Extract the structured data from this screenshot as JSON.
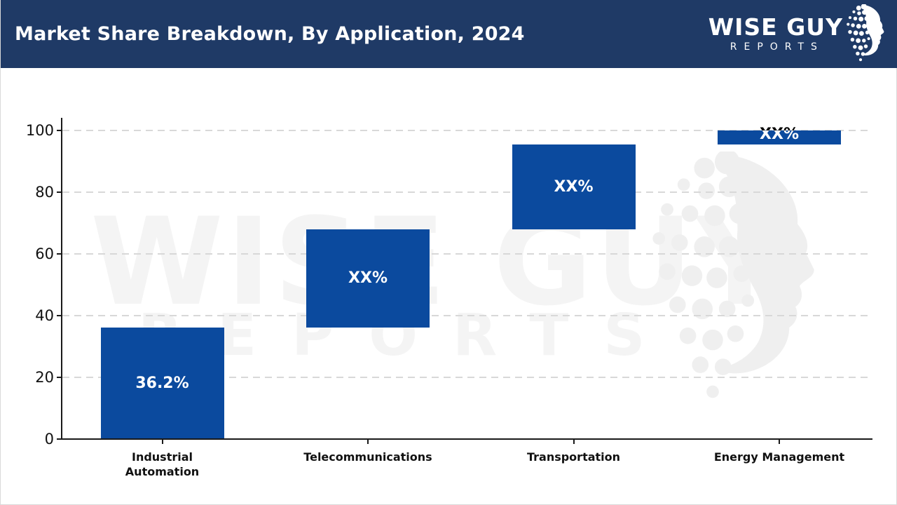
{
  "header": {
    "title": "Market Share Breakdown, By Application, 2024",
    "bg_color": "#1F3A66",
    "logo": {
      "line1": "WISE GUY",
      "line2": "REPORTS"
    }
  },
  "watermark": {
    "line1": "WISE GUY",
    "line2": "REPORTS"
  },
  "chart_data": {
    "type": "bar",
    "subtype": "waterfall-stacked-percent",
    "title": "Market Share Breakdown, By Application, 2024",
    "bar_color": "#0B4A9E",
    "grid": "dashed-horizontal",
    "gridline_color": "#D8D8D8",
    "ylim": [
      0,
      104
    ],
    "yticks": [
      0,
      20,
      40,
      60,
      80,
      100
    ],
    "categories": [
      {
        "name": "Industrial Automation",
        "label_lines": [
          "Industrial",
          "Automation"
        ],
        "start": 0,
        "end": 36.2,
        "value_label": "36.2%",
        "small": false
      },
      {
        "name": "Telecommunications",
        "label_lines": [
          "Telecommunications"
        ],
        "start": 36.2,
        "end": 68.0,
        "value_label": "XX%",
        "small": false
      },
      {
        "name": "Transportation",
        "label_lines": [
          "Transportation"
        ],
        "start": 68.0,
        "end": 95.5,
        "value_label": "XX%",
        "small": false
      },
      {
        "name": "Energy Management",
        "label_lines": [
          "Energy Management"
        ],
        "start": 95.5,
        "end": 100.0,
        "value_label": "XX%",
        "small": true
      }
    ]
  }
}
